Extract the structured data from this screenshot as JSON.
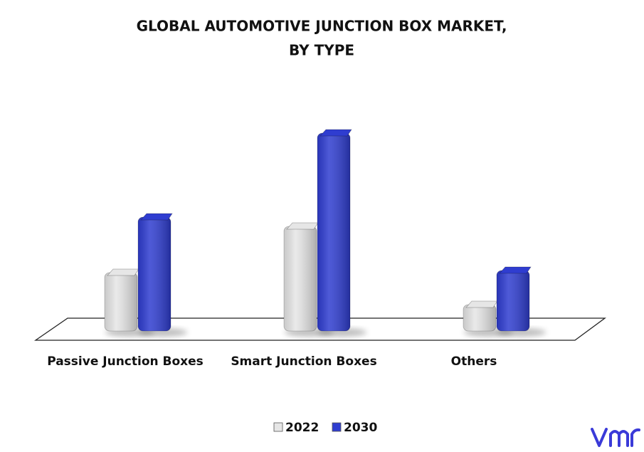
{
  "chart_data": {
    "type": "bar3d",
    "title": [
      "GLOBAL AUTOMOTIVE JUNCTION BOX MARKET,",
      "BY TYPE"
    ],
    "categories": [
      "Passive Junction Boxes",
      "Smart Junction Boxes",
      "Others"
    ],
    "series": [
      {
        "name": "2022",
        "color": "#e6e6e6",
        "values": [
          82,
          147,
          37
        ]
      },
      {
        "name": "2030",
        "color": "#2f3dd0",
        "values": [
          160,
          278,
          85
        ]
      }
    ]
  }
}
